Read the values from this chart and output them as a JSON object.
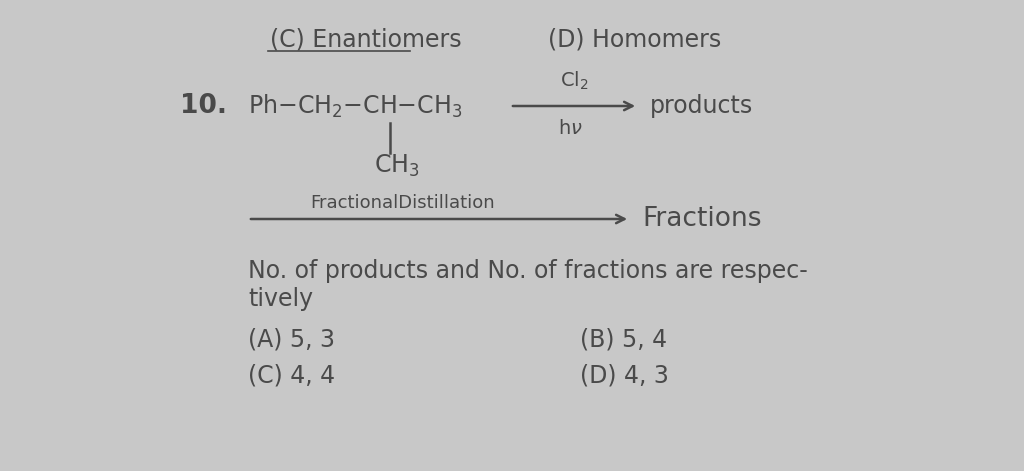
{
  "bg_color": "#c8c8c8",
  "text_color": "#4a4a4a",
  "title_c": "(C) Enantiomers",
  "title_d": "(D) Homomers",
  "question_num": "10.",
  "reagent_top": "Cl$_2$",
  "reagent_bottom": "h$\\nu$",
  "product_label": "products",
  "arrow2_label": "FractionalDistillation",
  "arrow2_product": "Fractions",
  "question_text1": "No. of products and No. of fractions are respec-",
  "question_text2": "tively",
  "opt_a": "(A) 5, 3",
  "opt_b": "(B) 5, 4",
  "opt_c": "(C) 4, 4",
  "opt_d": "(D) 4, 3",
  "fs_main": 17,
  "fs_small": 14,
  "fs_question": 17,
  "fs_options": 17
}
